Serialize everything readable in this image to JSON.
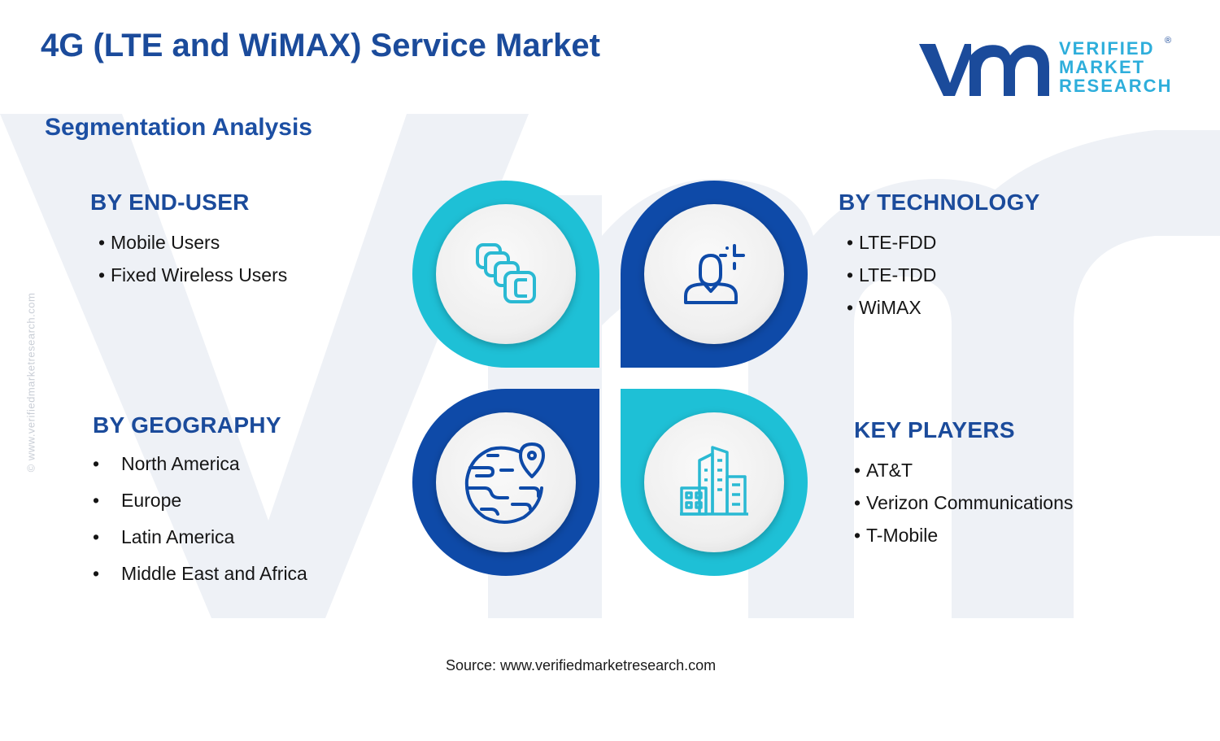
{
  "title": "4G (LTE and WiMAX) Service Market",
  "subtitle": "Segmentation Analysis",
  "logo": {
    "line1": "VERIFIED",
    "line2": "MARKET",
    "line3": "RESEARCH",
    "reg": "®"
  },
  "side_note": "© www.verifiedmarketresearch.com",
  "segments": {
    "end_user": {
      "heading": "BY END-USER",
      "bullet": "•",
      "items": [
        "Mobile Users",
        "Fixed Wireless Users"
      ]
    },
    "technology": {
      "heading": "BY TECHNOLOGY",
      "bullet": "•",
      "items": [
        "LTE-FDD",
        "LTE-TDD",
        "WiMAX"
      ]
    },
    "geography": {
      "heading": "BY GEOGRAPHY",
      "bullet": "•",
      "items": [
        "North America",
        "Europe",
        "Latin America",
        "Middle East and Africa"
      ]
    },
    "key_players": {
      "heading": "KEY PLAYERS",
      "bullet": "•",
      "items": [
        "AT&T",
        "Verizon Communications",
        "T-Mobile"
      ]
    }
  },
  "icons": {
    "end_user": "stacked-cards-icon",
    "technology": "user-signal-icon",
    "geography": "globe-location-icon",
    "key_players": "office-buildings-icon"
  },
  "colors": {
    "title": "#1b4b9b",
    "light_blue": "#1ec0d6",
    "dark_blue": "#0e4aa8",
    "icon_dark": "#0e4aa8",
    "icon_light": "#2ab9d3"
  },
  "source": "Source: www.verifiedmarketresearch.com"
}
